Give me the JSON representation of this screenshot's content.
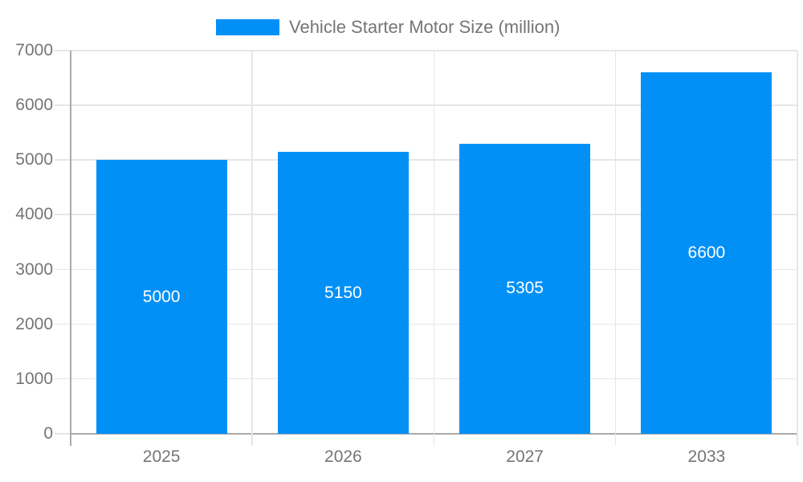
{
  "legend": {
    "title": "Vehicle Starter Motor Size (million)"
  },
  "chart_data": {
    "type": "bar",
    "title": "Vehicle Starter Motor Size (million)",
    "categories": [
      "2025",
      "2026",
      "2027",
      "2033"
    ],
    "values": [
      5000,
      5150,
      5305,
      6600
    ],
    "bar_labels": [
      "5000",
      "5150",
      "5305",
      "6600"
    ],
    "xlabel": "",
    "ylabel": "",
    "ylim": [
      0,
      7000
    ],
    "ytick_step": 1000,
    "ytick_labels": [
      "0",
      "1000",
      "2000",
      "3000",
      "4000",
      "5000",
      "6000",
      "7000"
    ],
    "grid": true,
    "legend_position": "top",
    "colors": {
      "bar": "#0290f7",
      "bar_label_text": "#ffffff",
      "axis_text": "#757575",
      "gridline": "#e6e6e6",
      "axis_line": "#aaaaaa"
    }
  }
}
